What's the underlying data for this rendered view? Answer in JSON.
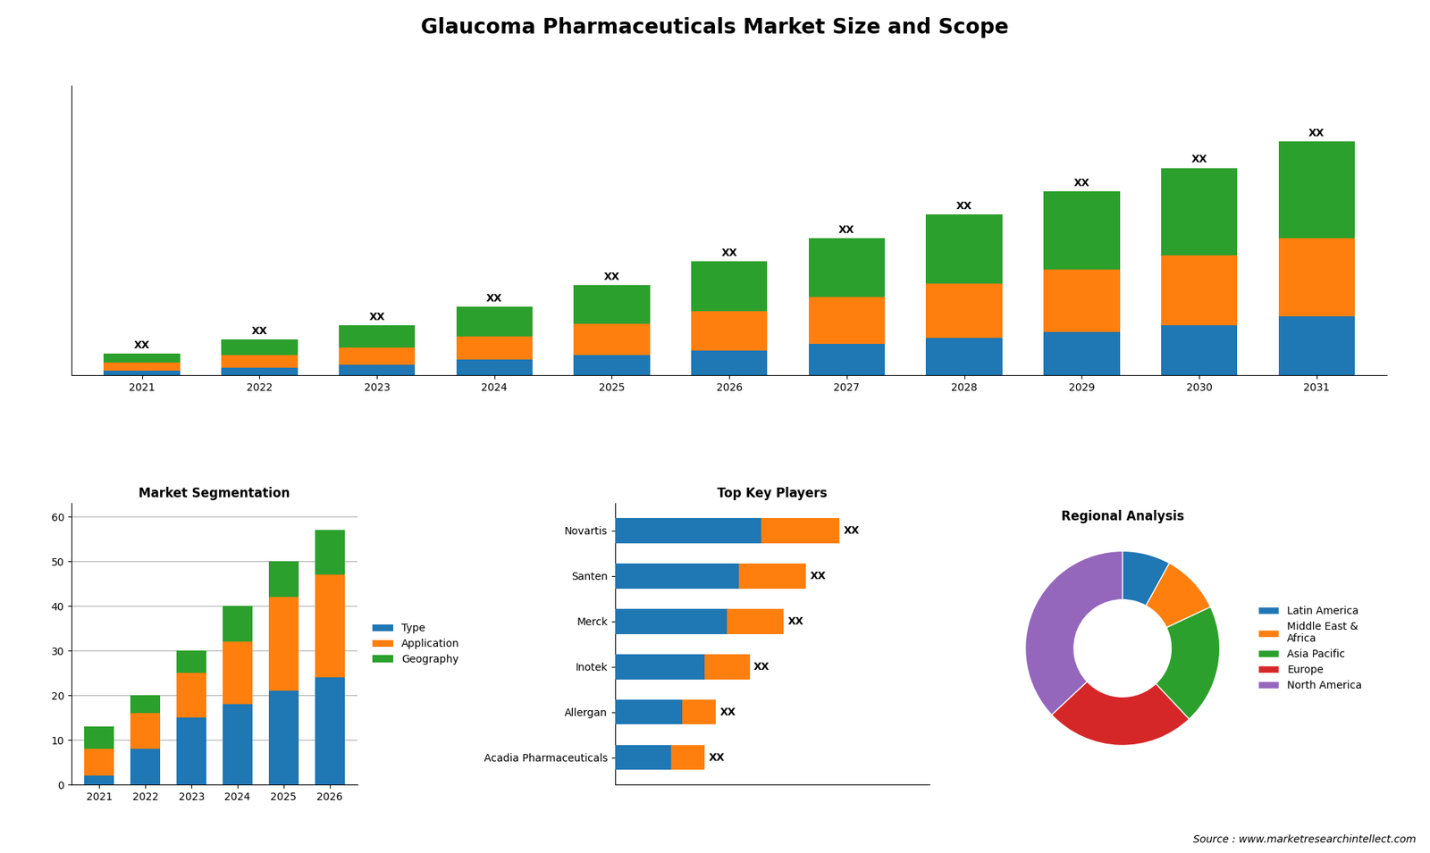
{
  "title": "Glaucoma Pharmaceuticals Market Size and Scope",
  "annotations": [
    "Source : www.marketresearchintellect.com"
  ],
  "chart_data": [
    {
      "type": "bar",
      "stacked": true,
      "categories": [
        "2021",
        "2022",
        "2023",
        "2024",
        "2025",
        "2026",
        "2027",
        "2028",
        "2029",
        "2030",
        "2031"
      ],
      "series": [
        {
          "values": [
            1.5,
            2.5,
            3.5,
            5,
            6.5,
            8,
            10,
            12,
            14,
            16,
            19
          ]
        },
        {
          "values": [
            2.5,
            4,
            5.5,
            7.5,
            10,
            12.5,
            15,
            17.5,
            20,
            22.5,
            25
          ]
        },
        {
          "values": [
            3,
            5,
            7,
            9.5,
            12.5,
            16,
            19,
            22,
            25,
            28,
            31
          ],
          "value_labels": [
            "XX",
            "XX",
            "XX",
            "XX",
            "XX",
            "XX",
            "XX",
            "XX",
            "XX",
            "XX",
            "XX"
          ]
        }
      ],
      "data_labels": true,
      "ylim": [
        0,
        93
      ],
      "tick_labels": "x"
    },
    {
      "type": "bar",
      "title": "Market Segmentation",
      "stacked": true,
      "categories": [
        "2021",
        "2022",
        "2023",
        "2024",
        "2025",
        "2026"
      ],
      "series": [
        {
          "name": "Type",
          "values": [
            2,
            8,
            15,
            18,
            21,
            24
          ]
        },
        {
          "name": "Application",
          "values": [
            6,
            8,
            10,
            14,
            21,
            23
          ]
        },
        {
          "name": "Geography",
          "values": [
            5,
            4,
            5,
            8,
            8,
            10
          ]
        }
      ],
      "ylim": [
        0,
        63
      ],
      "yticks": [
        0,
        10,
        20,
        30,
        40,
        50,
        60
      ],
      "grid": true,
      "legend": "right"
    },
    {
      "type": "bar",
      "title": "Top Key Players",
      "orientation": "horizontal",
      "stacked": true,
      "categories": [
        "Novartis",
        "Santen",
        "Merck",
        "Inotek",
        "Allergan",
        "Acadia Pharmaceuticals"
      ],
      "series": [
        {
          "values": [
            6.5,
            5.5,
            5.0,
            4.0,
            3.0,
            2.5
          ]
        },
        {
          "values": [
            3.5,
            3.0,
            2.5,
            2.0,
            1.5,
            1.5
          ],
          "value_labels": [
            "XX",
            "XX",
            "XX",
            "XX",
            "XX",
            "XX"
          ]
        }
      ],
      "data_labels": true,
      "xlim": [
        0,
        14
      ],
      "tick_labels": "y"
    },
    {
      "type": "donut",
      "title": "Regional Analysis",
      "categories": [
        "Latin America",
        "Middle East &\nAfrica",
        "Asia Pacific",
        "Europe",
        "North America"
      ],
      "values": [
        8,
        10,
        20,
        25,
        37
      ],
      "legend": "right"
    }
  ]
}
